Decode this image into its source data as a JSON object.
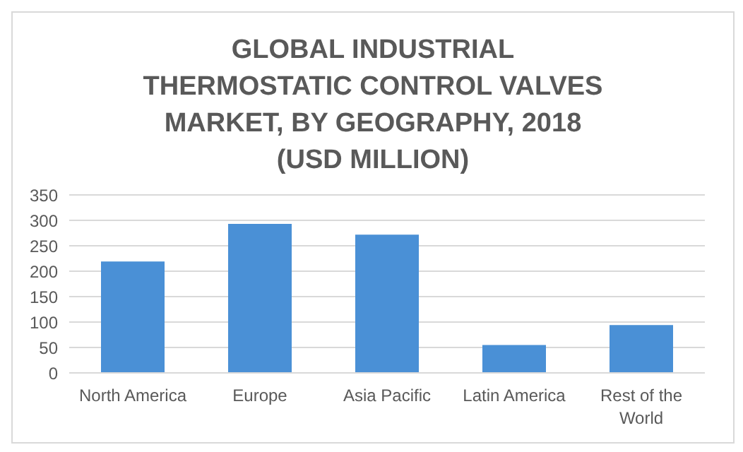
{
  "chart_data": {
    "type": "bar",
    "title": "GLOBAL INDUSTRIAL THERMOSTATIC CONTROL VALVES MARKET, BY GEOGRAPHY, 2018 (USD MILLION)",
    "categories": [
      "North America",
      "Europe",
      "Asia Pacific",
      "Latin America",
      "Rest of the World"
    ],
    "values": [
      219,
      293,
      272,
      55,
      94
    ],
    "color": "#4a90d6",
    "ylim": [
      0,
      350
    ],
    "yticks": [
      0,
      50,
      100,
      150,
      200,
      250,
      300,
      350
    ],
    "grid": "y"
  }
}
